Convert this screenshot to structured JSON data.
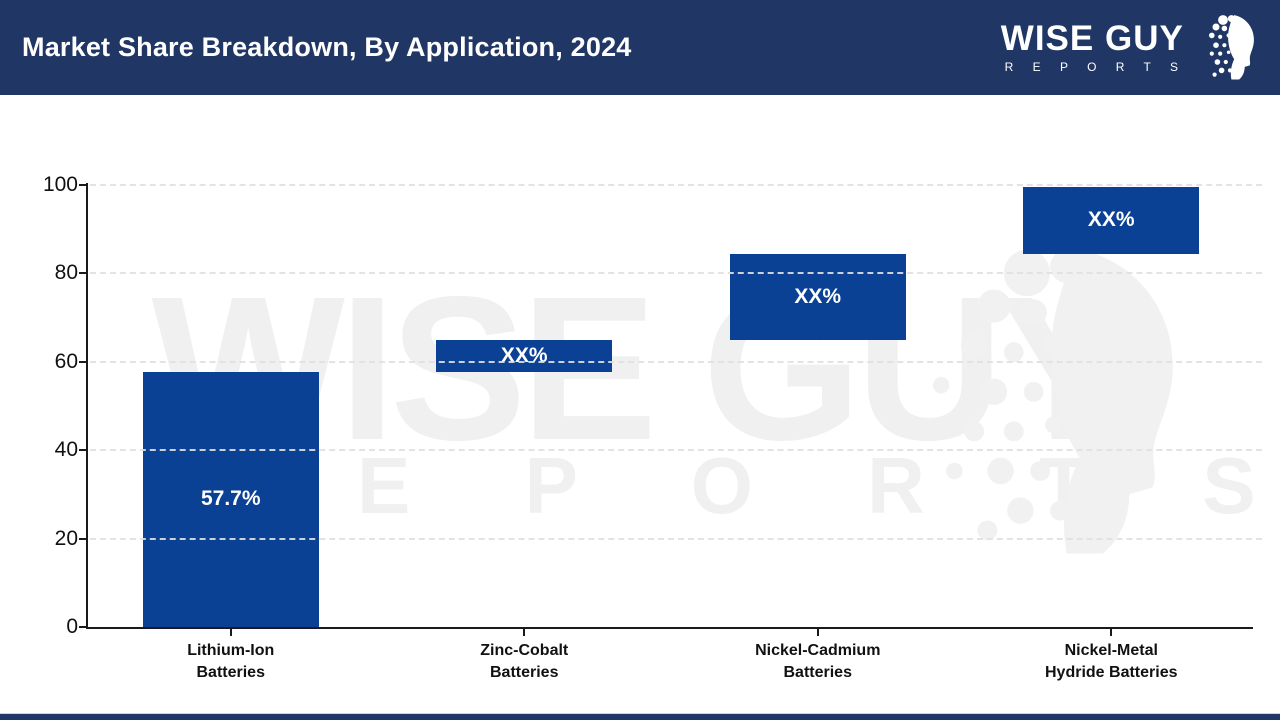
{
  "header": {
    "title": "Market Share Breakdown, By Application, 2024",
    "logo": {
      "line1": "WISE GUY",
      "line2": "R E P O R T S"
    }
  },
  "watermark": {
    "line1": "WISE GUY",
    "line2": "R E P O R T S"
  },
  "theme": {
    "header_bg": "#203664",
    "bar_color": "#0a4194",
    "grid_color": "rgba(224,224,224,0.9)",
    "watermark_color": "#f0f0f0"
  },
  "chart_data": {
    "type": "bar",
    "subtype": "waterfall",
    "title": "Market Share Breakdown, By Application, 2024",
    "categories": [
      "Lithium-Ion\nBatteries",
      "Zinc-Cobalt\nBatteries",
      "Nickel-Cadmium\nBatteries",
      "Nickel-Metal\nHydride Batteries"
    ],
    "bars": [
      {
        "start": 0,
        "end": 57.7,
        "label": "57.7%"
      },
      {
        "start": 57.7,
        "end": 65,
        "label": "XX%"
      },
      {
        "start": 65,
        "end": 84.5,
        "label": "XX%"
      },
      {
        "start": 84.5,
        "end": 99.5,
        "label": "XX%"
      }
    ],
    "xlabel": "",
    "ylabel": "",
    "ylim": [
      0,
      100
    ],
    "yticks": [
      0,
      20,
      40,
      60,
      80,
      100
    ],
    "grid": "horizontal-dashed",
    "grid_above_bars": true,
    "legend": false,
    "bar_label_color": "#ffffff"
  }
}
